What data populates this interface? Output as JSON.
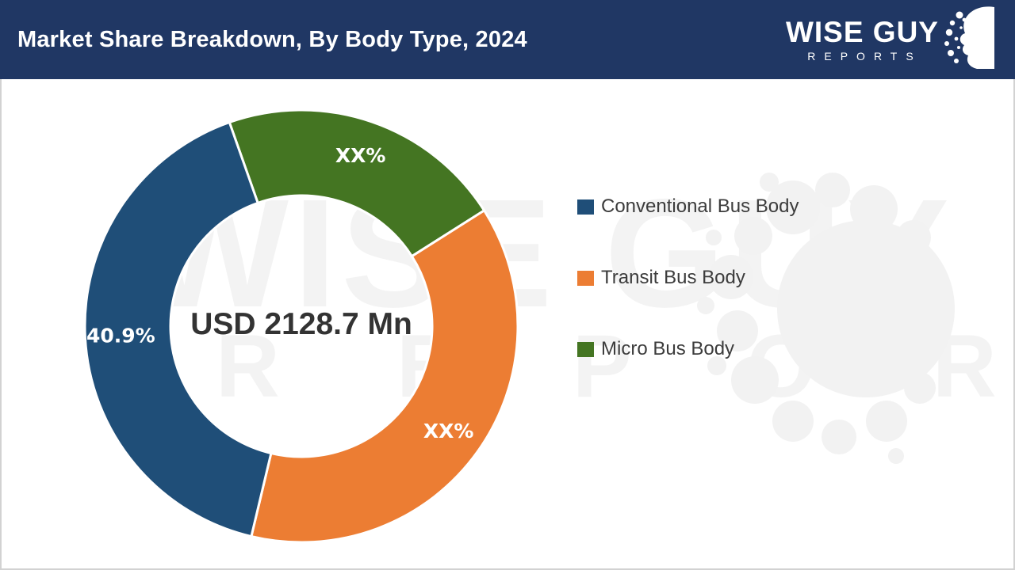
{
  "header": {
    "title": "Market Share Breakdown, By Body Type, 2024",
    "bg_color": "#203764",
    "logo": {
      "line1": "WISE GUY",
      "line2": "REPORTS"
    }
  },
  "watermark": {
    "line1": "WISE GUY",
    "line2": "R E P O R T S"
  },
  "chart_data": {
    "type": "pie",
    "subtype": "donut",
    "title": "Market Share Breakdown, By Body Type, 2024",
    "center_label": "USD 2128.7 Mn",
    "start_angle_deg": -19.4,
    "direction": "clockwise",
    "legend_position": "right",
    "segments": [
      {
        "name": "Micro Bus Body",
        "label": "XX%",
        "value_pct": 21.4,
        "color": "#447522"
      },
      {
        "name": "Transit Bus Body",
        "label": "XX%",
        "value_pct": 37.7,
        "color": "#EC7D33"
      },
      {
        "name": "Conventional Bus Body",
        "label": "40.9%",
        "value_pct": 40.9,
        "color": "#1F4E78"
      }
    ]
  },
  "legend": {
    "items": [
      {
        "label": "Conventional Bus Body",
        "color": "#1F4E78"
      },
      {
        "label": "Transit Bus Body",
        "color": "#EC7D33"
      },
      {
        "label": "Micro Bus Body",
        "color": "#447522"
      }
    ]
  }
}
